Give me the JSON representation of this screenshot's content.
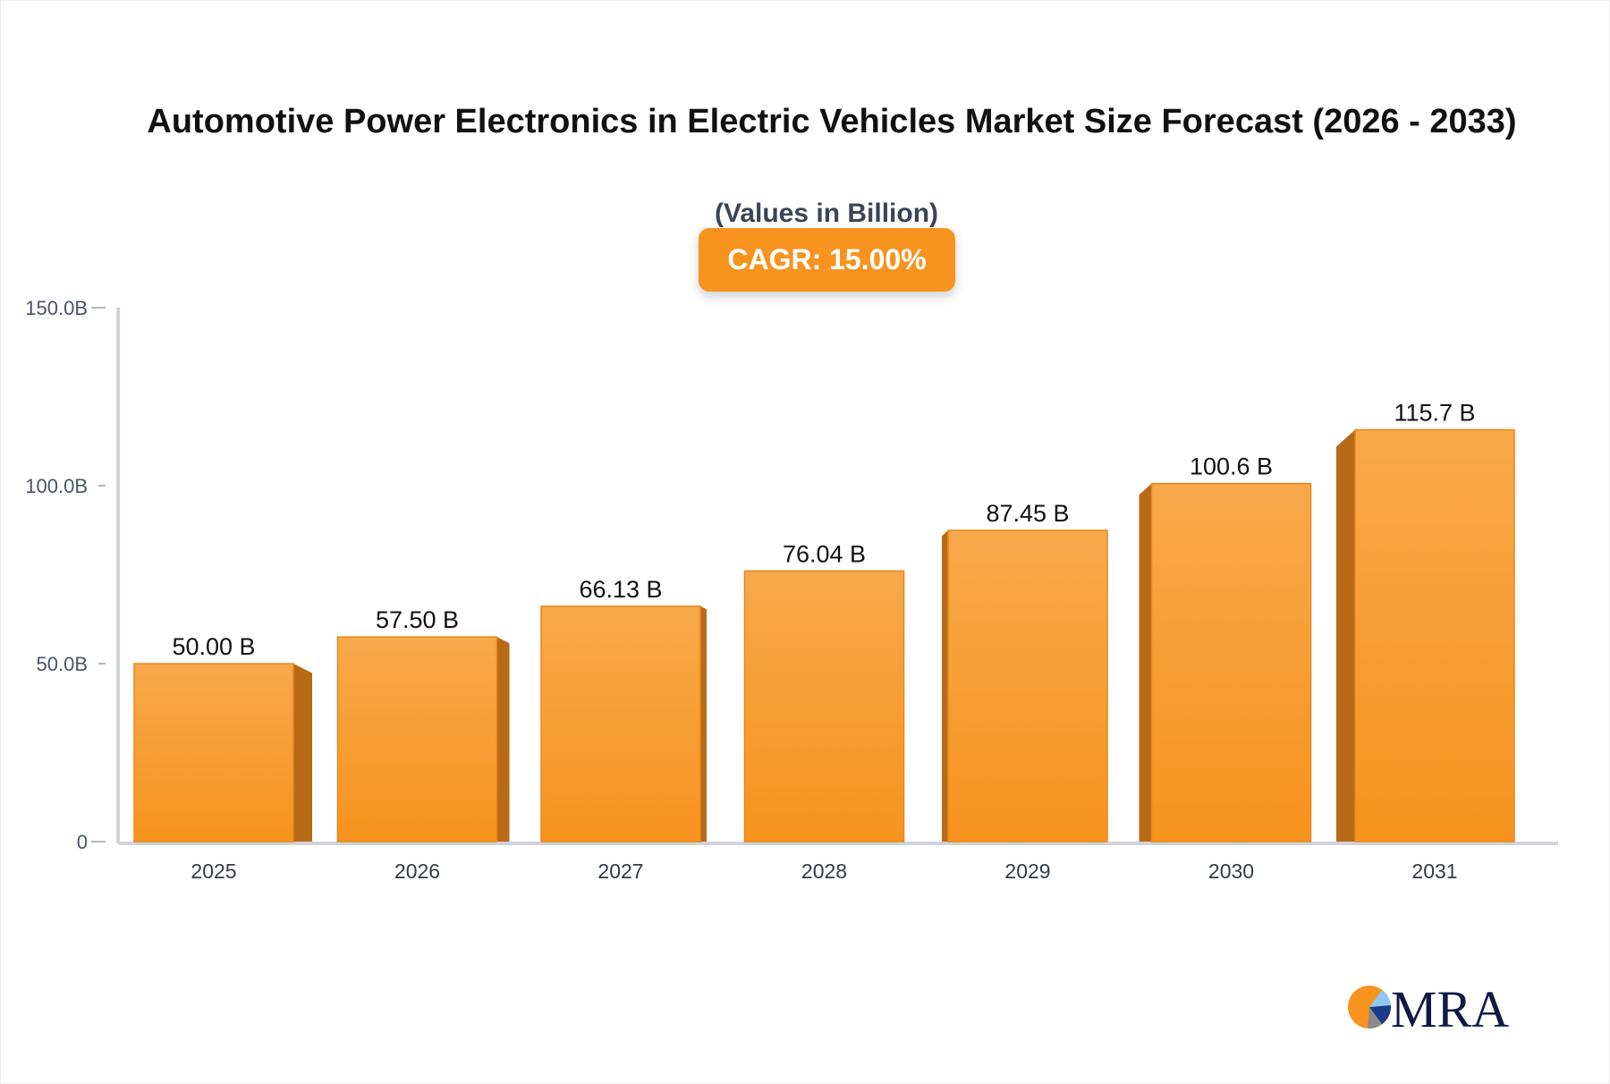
{
  "chart_data": {
    "type": "bar",
    "title": "Automotive Power Electronics in Electric Vehicles Market Size Forecast (2026 - 2033)",
    "subtitle": "(Values in Billion)",
    "badge": "CAGR: 15.00%",
    "categories": [
      "2025",
      "2026",
      "2027",
      "2028",
      "2029",
      "2030",
      "2031"
    ],
    "values": [
      50.0,
      57.5,
      66.13,
      76.04,
      87.45,
      100.6,
      115.7
    ],
    "data_labels": [
      "50.00 B",
      "57.50 B",
      "66.13 B",
      "76.04 B",
      "87.45 B",
      "100.6 B",
      "115.7 B"
    ],
    "ylim": [
      0,
      150
    ],
    "yticks": [
      0,
      50,
      100,
      150
    ],
    "ytick_labels": [
      "0",
      "50.0B",
      "100.0B",
      "150.0B"
    ],
    "grid": false,
    "colors": {
      "bar_top": "#f7a94b",
      "bar_bottom": "#f7931e",
      "bar_side": "#b86a17",
      "axis": "#d0d3dc",
      "badge": "#f7931e"
    }
  },
  "logo": {
    "text": "MRA"
  }
}
